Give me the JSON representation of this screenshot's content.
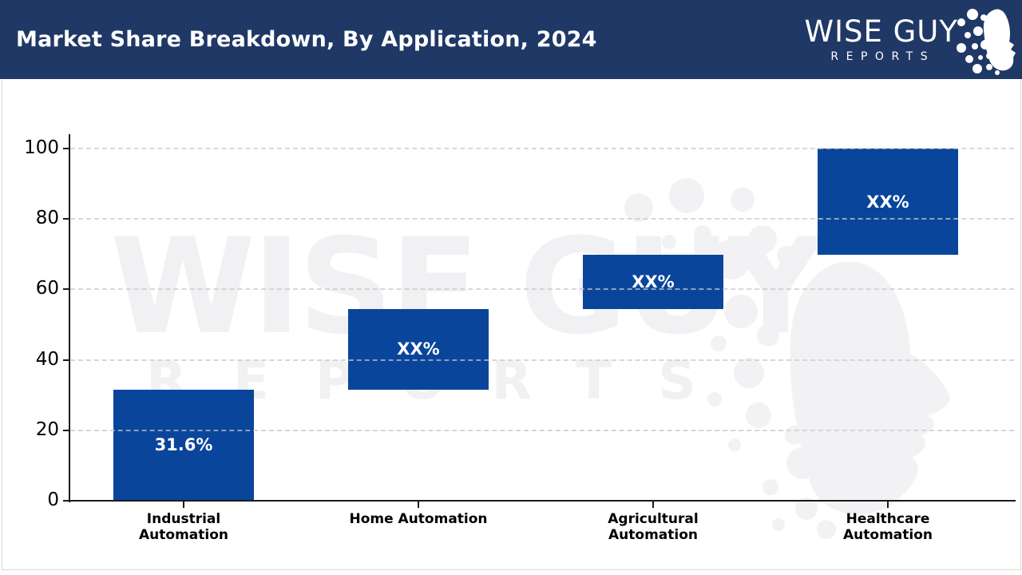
{
  "header": {
    "title": "Market Share Breakdown, By Application, 2024",
    "bg_color": "#1f3866",
    "logo": {
      "wordmark": "WISE GUY",
      "subtext": "REPORTS"
    }
  },
  "watermark": {
    "wordmark": "WISE GUY",
    "subtext": "REPORTS"
  },
  "chart_data": {
    "type": "bar",
    "subtype": "waterfall",
    "title": "Market Share Breakdown, By Application, 2024",
    "xlabel": "",
    "ylabel": "",
    "categories": [
      "Industrial Automation",
      "Home Automation",
      "Agricultural Automation",
      "Healthcare Automation"
    ],
    "bars": [
      {
        "category": "Industrial Automation",
        "label_lines": [
          "Industrial",
          "Automation"
        ],
        "from": 0,
        "to": 31.6,
        "value_label": "31.6%"
      },
      {
        "category": "Home Automation",
        "label_lines": [
          "Home Automation"
        ],
        "from": 31.6,
        "to": 54.4,
        "value_label": "XX%"
      },
      {
        "category": "Agricultural Automation",
        "label_lines": [
          "Agricultural",
          "Automation"
        ],
        "from": 54.4,
        "to": 69.8,
        "value_label": "XX%"
      },
      {
        "category": "Healthcare Automation",
        "label_lines": [
          "Healthcare",
          "Automation"
        ],
        "from": 69.8,
        "to": 100,
        "value_label": "XX%"
      }
    ],
    "yticks": [
      0,
      20,
      40,
      60,
      80,
      100
    ],
    "ylim": [
      0,
      104
    ],
    "grid": "horizontal-dashed",
    "legend": "none",
    "colors": {
      "bar": "#0a459c",
      "bar_label": "#ffffff",
      "grid": "#dcdcdc",
      "axis": "#1a1a1a",
      "watermark": "#f1f1f4"
    }
  }
}
